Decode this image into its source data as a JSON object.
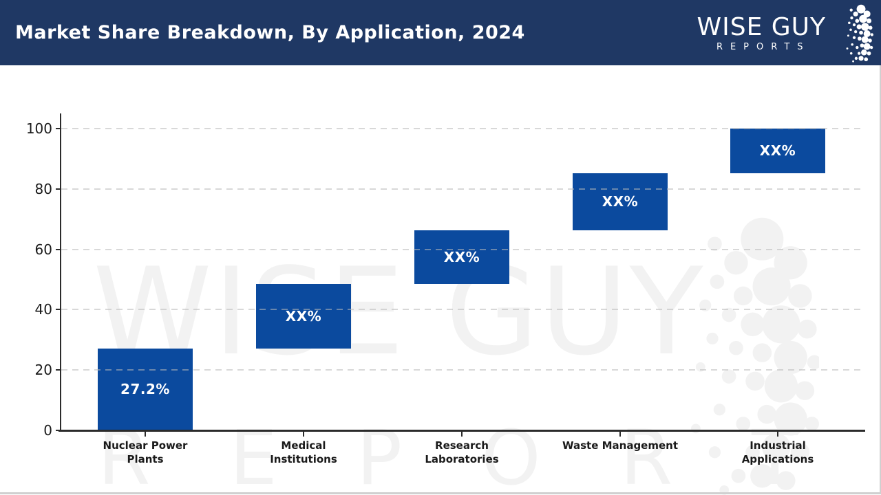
{
  "header": {
    "title": "Market Share Breakdown, By Application, 2024",
    "logo": {
      "wordmark": "WISE GUY",
      "subtext": "REPORTS"
    }
  },
  "watermark": {
    "wordmark": "WISE GUY",
    "subtext": "R E P O R T S"
  },
  "chart_data": {
    "type": "bar",
    "subtype": "waterfall-floating-bars",
    "title": "Market Share Breakdown, By Application, 2024",
    "xlabel": "",
    "ylabel": "",
    "ylim": [
      0,
      100
    ],
    "yticks": [
      0,
      20,
      40,
      60,
      80,
      100
    ],
    "grid": "horizontal dashed, drawn over bars",
    "legend": "none",
    "bar_color": "#0b4a9e",
    "categories": [
      "Nuclear Power Plants",
      "Medical Institutions",
      "Research Laboratories",
      "Waste Management",
      "Industrial Applications"
    ],
    "category_label_lines": [
      [
        "Nuclear Power",
        "Plants"
      ],
      [
        "Medical",
        "Institutions"
      ],
      [
        "Research",
        "Laboratories"
      ],
      [
        "Waste Management"
      ],
      [
        "Industrial",
        "Applications"
      ]
    ],
    "segments": [
      {
        "category": "Nuclear Power Plants",
        "start": 0,
        "end": 27.2,
        "label": "27.2%"
      },
      {
        "category": "Medical Institutions",
        "start": 27.2,
        "end": 48.6,
        "label": "XX%"
      },
      {
        "category": "Research Laboratories",
        "start": 48.6,
        "end": 66.4,
        "label": "XX%"
      },
      {
        "category": "Waste Management",
        "start": 66.4,
        "end": 85.2,
        "label": "XX%"
      },
      {
        "category": "Industrial Applications",
        "start": 85.2,
        "end": 100,
        "label": "XX%"
      }
    ]
  },
  "colors": {
    "header_bg": "#1f3864",
    "bar": "#0b4a9e",
    "axis": "#2b2b2b",
    "grid": "rgba(185,185,185,0.55)",
    "text": "#1a1a1a",
    "watermark": "#f2f2f2",
    "border": "#d0d0d0"
  }
}
